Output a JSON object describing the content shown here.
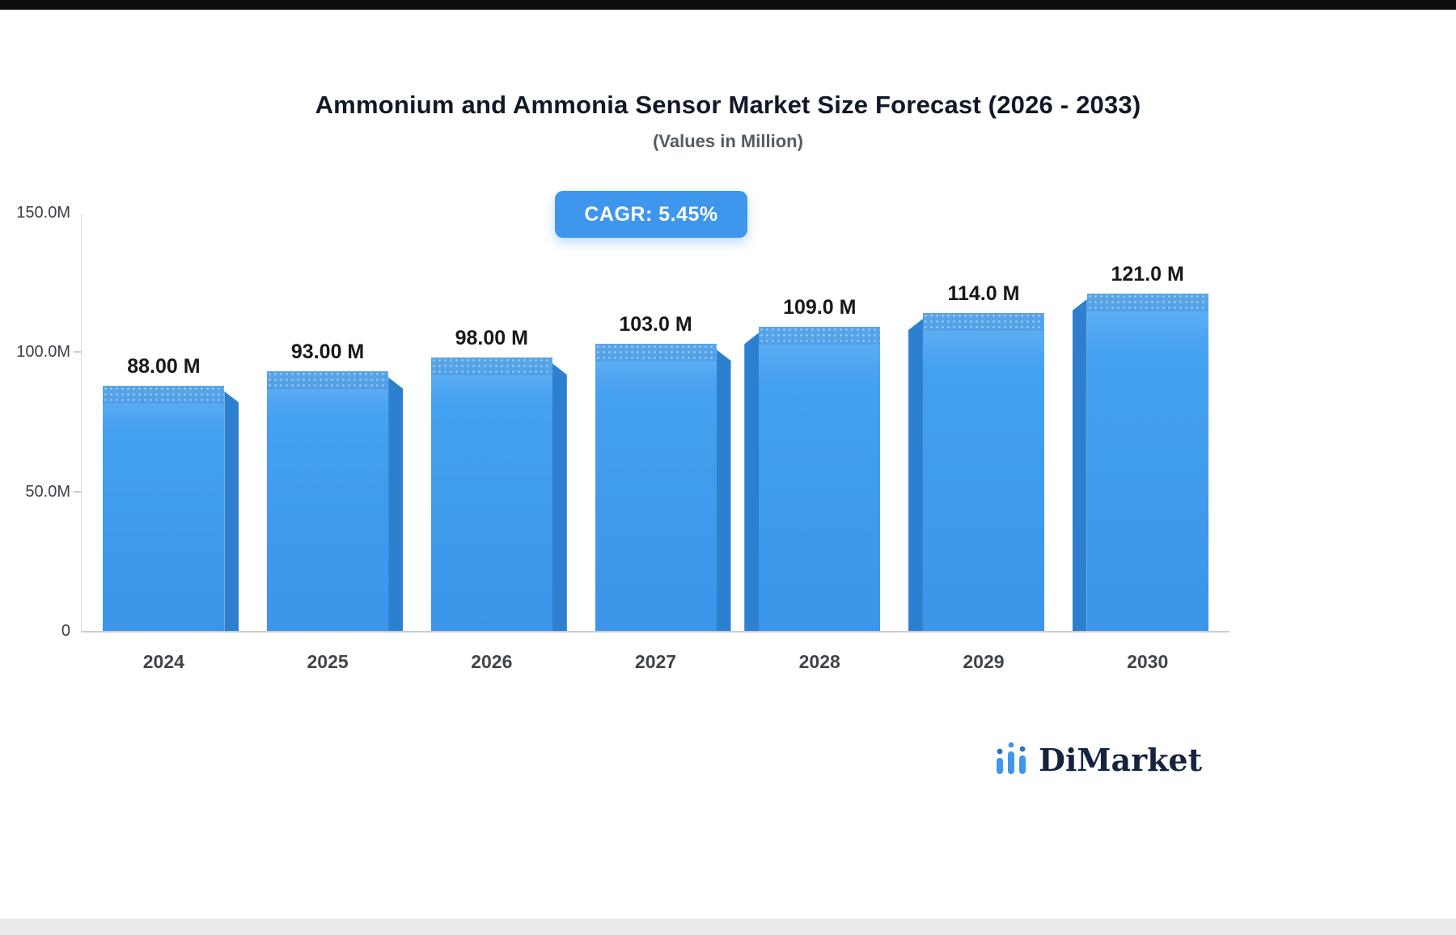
{
  "title": "Ammonium and Ammonia Sensor Market Size Forecast (2026 - 2033)",
  "subtitle": "(Values in Million)",
  "badge": {
    "label": "CAGR: 5.45%"
  },
  "logo": {
    "text": "DiMarket"
  },
  "chart_data": {
    "type": "bar",
    "categories": [
      "2024",
      "2025",
      "2026",
      "2027",
      "2028",
      "2029",
      "2030"
    ],
    "values": [
      88,
      93,
      98,
      103,
      109,
      114,
      121
    ],
    "value_labels": [
      "88.00 M",
      "93.00 M",
      "98.00 M",
      "103.0 M",
      "109.0 M",
      "114.0 M",
      "121.0 M"
    ],
    "title": "Ammonium and Ammonia Sensor Market Size Forecast (2026 - 2033)",
    "xlabel": "",
    "ylabel": "",
    "ylim": [
      0,
      150
    ],
    "yticks": [
      {
        "value": 0,
        "label": "0"
      },
      {
        "value": 50,
        "label": "50.0M"
      },
      {
        "value": 100,
        "label": "100.0M"
      },
      {
        "value": 150,
        "label": "150.0M"
      }
    ],
    "grid": false,
    "legend": false,
    "bar_color": "#3d9aee",
    "bar_side_color": "#2d7fd0",
    "badge_color": "#3e96ed"
  }
}
